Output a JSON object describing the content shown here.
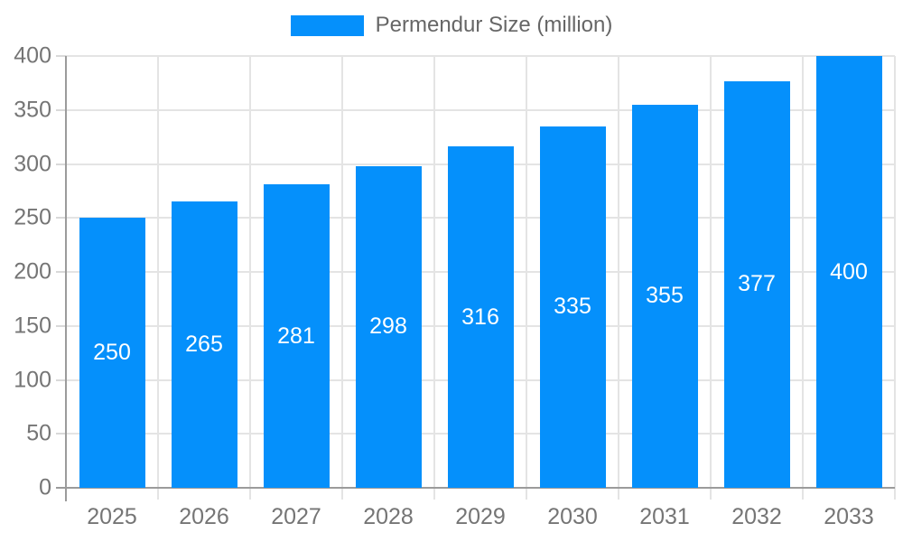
{
  "legend": {
    "label": "Permendur Size (million)"
  },
  "colors": {
    "bar": "#0590FB",
    "axis": "#9B9B9B",
    "grid": "#E4E4E4",
    "tick_mark": "#D9D9D9",
    "tick_text": "#757575",
    "legend_text": "#666666",
    "value_label": "#FFFFFF",
    "background": "#FFFFFF"
  },
  "chart_data": {
    "type": "bar",
    "title": "",
    "xlabel": "",
    "ylabel": "",
    "categories": [
      "2025",
      "2026",
      "2027",
      "2028",
      "2029",
      "2030",
      "2031",
      "2032",
      "2033"
    ],
    "series": [
      {
        "name": "Permendur Size (million)",
        "values": [
          250,
          265,
          281,
          298,
          316,
          335,
          355,
          377,
          400
        ]
      }
    ],
    "ylim": [
      0,
      400
    ],
    "ytick_step": 50,
    "yticks": [
      0,
      50,
      100,
      150,
      200,
      250,
      300,
      350,
      400
    ],
    "grid": true,
    "legend_position": "top",
    "bar_labels": "inside-center"
  }
}
